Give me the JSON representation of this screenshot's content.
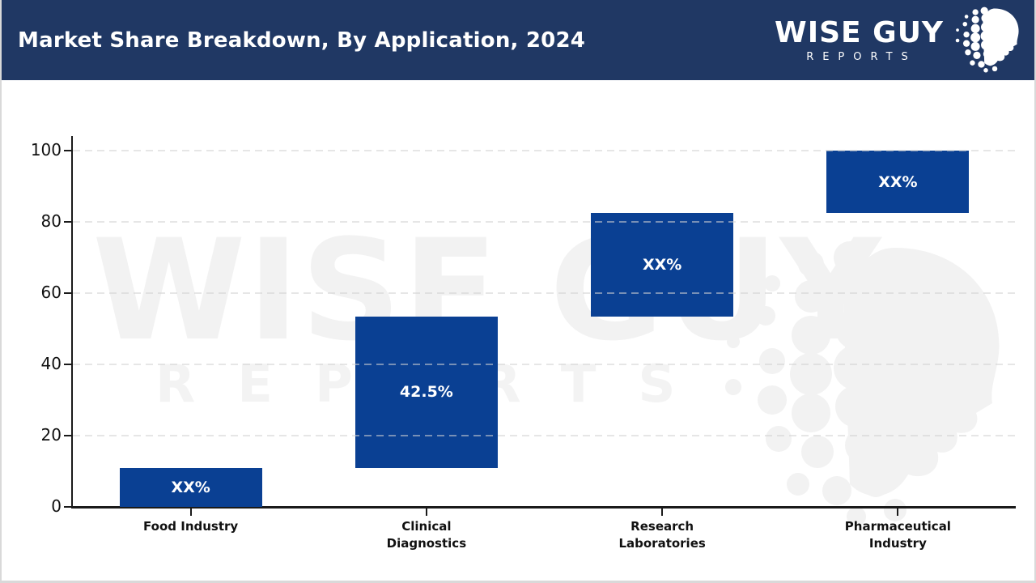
{
  "header": {
    "title": "Market Share Breakdown, By Application, 2024",
    "bg_color": "#203864",
    "logo": {
      "wordmark": "WISE GUY",
      "subtitle": "REPORTS"
    }
  },
  "watermark": {
    "wordmark": "WISE GUY",
    "subtitle": "REPORTS"
  },
  "chart_data": {
    "type": "bar",
    "subtype": "floating-segment-waterfall",
    "title": "Market Share Breakdown, By Application, 2024",
    "categories": [
      [
        "Food Industry"
      ],
      [
        "Clinical",
        "Diagnostics"
      ],
      [
        "Research",
        "Laboratories"
      ],
      [
        "Pharmaceutical",
        "Industry"
      ]
    ],
    "bars": [
      {
        "category": "Food Industry",
        "start": 0,
        "end": 11,
        "label": "XX%"
      },
      {
        "category": "Clinical Diagnostics",
        "start": 11,
        "end": 53.5,
        "label": "42.5%"
      },
      {
        "category": "Research Laboratories",
        "start": 53.5,
        "end": 82.5,
        "label": "XX%"
      },
      {
        "category": "Pharmaceutical Industry",
        "start": 82.5,
        "end": 100,
        "label": "XX%"
      }
    ],
    "xlabel": "",
    "ylabel": "",
    "yticks": [
      0,
      20,
      40,
      60,
      80,
      100
    ],
    "ylim": [
      0,
      105
    ],
    "bar_color": "#0a4093",
    "grid": true,
    "legend": false
  }
}
